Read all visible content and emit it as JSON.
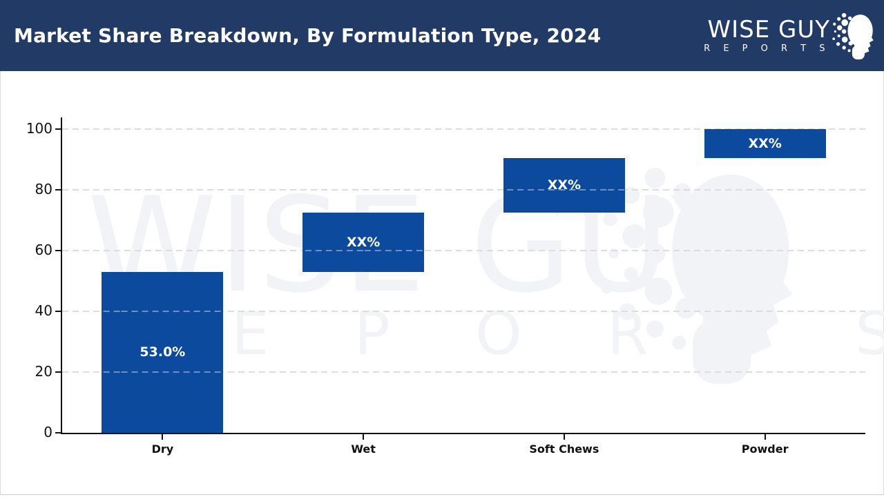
{
  "header": {
    "title": "Market Share Breakdown, By Formulation Type, 2024",
    "logo": {
      "line1": "WISE GUY",
      "line2": "R E P O R T S"
    }
  },
  "watermark": {
    "line1": "WISE GUY",
    "line2": "R E P O R T S"
  },
  "chart_data": {
    "type": "bar",
    "subtype": "waterfall",
    "title": "Market Share Breakdown, By Formulation Type, 2024",
    "categories": [
      "Dry",
      "Wet",
      "Soft Chews",
      "Powder"
    ],
    "bars": [
      {
        "category": "Dry",
        "start": 0,
        "end": 53.0,
        "value": 53.0,
        "label": "53.0%"
      },
      {
        "category": "Wet",
        "start": 53.0,
        "end": 72.5,
        "value": 19.5,
        "label": "XX%"
      },
      {
        "category": "Soft Chews",
        "start": 72.5,
        "end": 90.5,
        "value": 18.0,
        "label": "XX%"
      },
      {
        "category": "Powder",
        "start": 90.5,
        "end": 100.0,
        "value": 9.5,
        "label": "XX%"
      }
    ],
    "ylim": [
      0,
      100
    ],
    "yticks": [
      0,
      20,
      40,
      60,
      80,
      100
    ],
    "grid": {
      "horizontal": true,
      "style": "dashed",
      "color": "#dcdcdc"
    },
    "legend": null,
    "bar_color": "#0b4a9d",
    "bar_label_color": "#ffffff",
    "axis_color": "#111111"
  },
  "colors": {
    "header_bg": "#213a66",
    "bar_blue": "#0b4a9d",
    "watermark_gray": "#f2f3f6"
  }
}
